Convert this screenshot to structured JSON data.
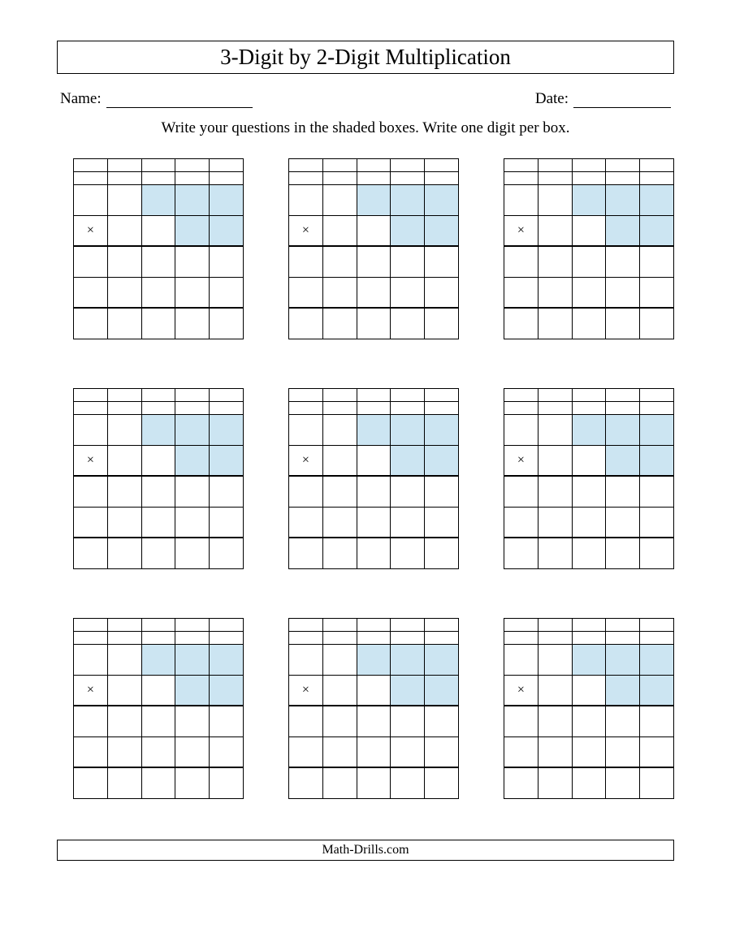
{
  "title": "3-Digit by 2-Digit Multiplication",
  "name_label": "Name:",
  "date_label": "Date:",
  "instructions": "Write your questions in the shaded boxes. Write one digit per box.",
  "operator": "×",
  "footer": "Math-Drills.com",
  "colors": {
    "shaded": "#cce5f2",
    "background": "#ffffff",
    "border": "#000000"
  },
  "grid": {
    "count": 9,
    "columns_per_grid": 5,
    "rows": [
      {
        "type": "half",
        "shaded": [],
        "thick_bottom": false,
        "operator_col": null
      },
      {
        "type": "half",
        "shaded": [],
        "thick_bottom": false,
        "operator_col": null
      },
      {
        "type": "full",
        "shaded": [
          2,
          3,
          4
        ],
        "thick_bottom": false,
        "operator_col": null
      },
      {
        "type": "full",
        "shaded": [
          3,
          4
        ],
        "thick_bottom": true,
        "operator_col": 0
      },
      {
        "type": "full",
        "shaded": [],
        "thick_bottom": false,
        "operator_col": null
      },
      {
        "type": "full",
        "shaded": [],
        "thick_bottom": true,
        "operator_col": null
      },
      {
        "type": "full",
        "shaded": [],
        "thick_bottom": false,
        "operator_col": null
      }
    ]
  }
}
